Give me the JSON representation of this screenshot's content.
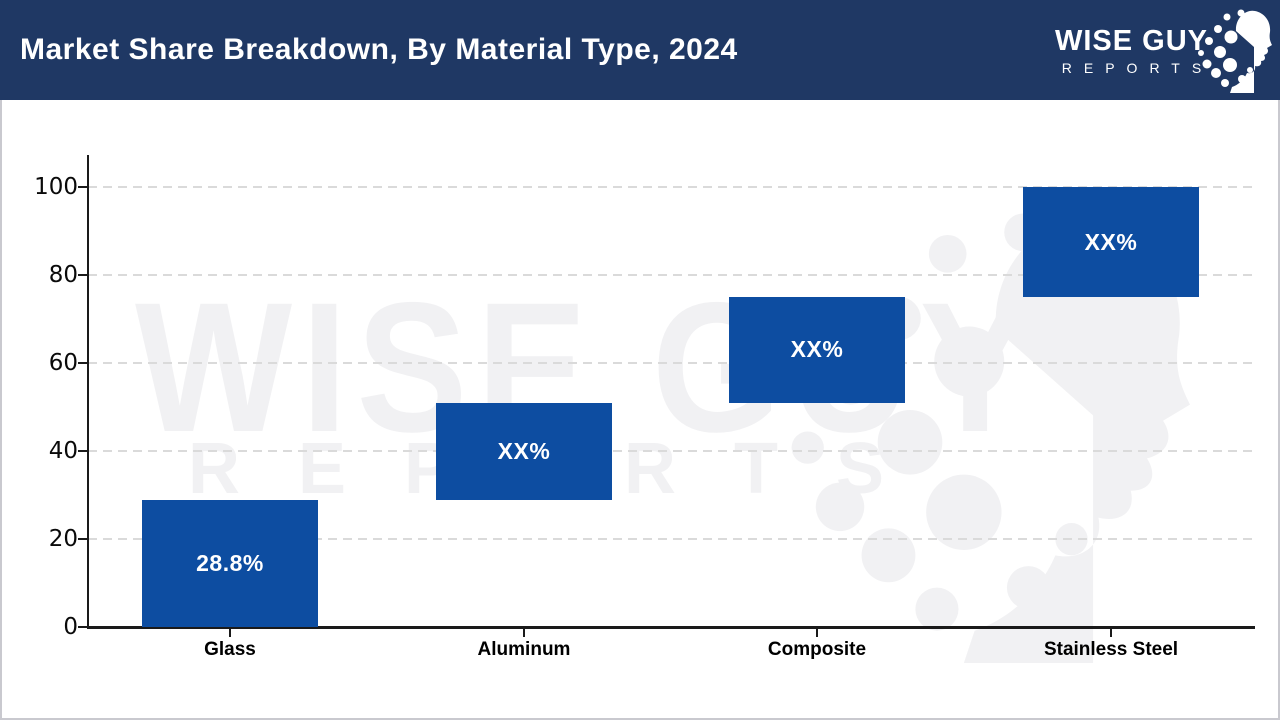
{
  "header": {
    "title": "Market Share Breakdown, By Material Type, 2024",
    "bg_color": "#1f3864",
    "logo": {
      "line1": "WISE GUY",
      "line2": "REPORTS",
      "head_icon": "dotted-head-profile"
    }
  },
  "watermark": {
    "line1": "WISE GUY",
    "line2": "REPORTS",
    "color": "#f1f1f3"
  },
  "chart_data": {
    "type": "bar",
    "subtype": "waterfall",
    "title": "Market Share Breakdown, By Material Type, 2024",
    "categories": [
      "Glass",
      "Aluminum",
      "Composite",
      "Stainless Steel"
    ],
    "segments": [
      {
        "category": "Glass",
        "start": 0,
        "end": 28.8,
        "label": "28.8%"
      },
      {
        "category": "Aluminum",
        "start": 28.8,
        "end": 51,
        "label": "XX%"
      },
      {
        "category": "Composite",
        "start": 51,
        "end": 75,
        "label": "XX%"
      },
      {
        "category": "Stainless Steel",
        "start": 75,
        "end": 100,
        "label": "XX%"
      }
    ],
    "xlabel": "",
    "ylabel": "",
    "ylim": [
      0,
      100
    ],
    "yticks": [
      0,
      20,
      40,
      60,
      80,
      100
    ],
    "grid": "horizontal dashed",
    "legend": "none",
    "bar_color": "#0d4da1",
    "bar_label_color": "#ffffff",
    "axis_color": "#1a1a1a"
  }
}
